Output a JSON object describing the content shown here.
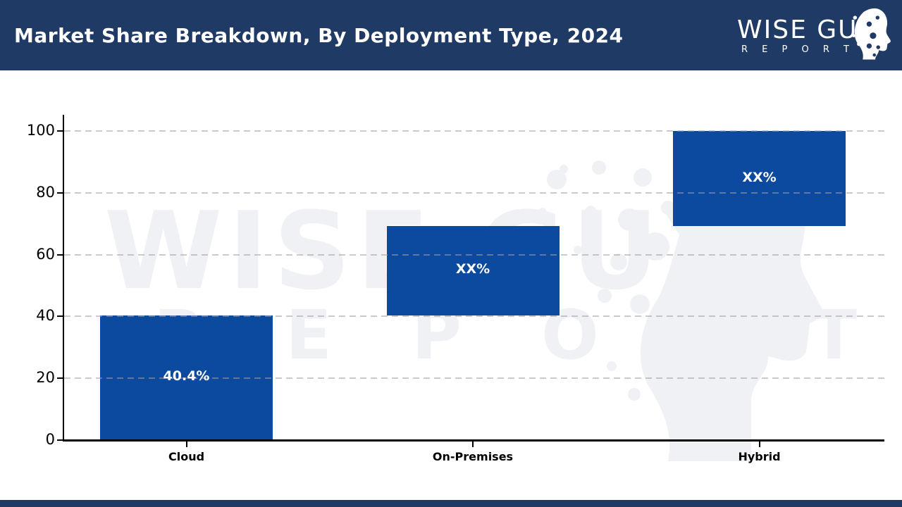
{
  "header": {
    "title": "Market Share Breakdown, By Deployment Type, 2024",
    "logo": {
      "wordmark": "WISE GUY",
      "subtext": "R E P O R T S"
    }
  },
  "watermark": {
    "wordmark": "WISE GUY",
    "subtext": "R E P O R T S"
  },
  "chart_data": {
    "type": "bar",
    "variant": "floating-waterfall",
    "title": "Market Share Breakdown, By Deployment Type, 2024",
    "unit": "%",
    "categories": [
      "Cloud",
      "On-Premises",
      "Hybrid"
    ],
    "series": [
      {
        "name": "Market share by deployment type",
        "segments": [
          {
            "category": "Cloud",
            "from": 0,
            "to": 40.4,
            "value": 40.4,
            "label": "40.4%"
          },
          {
            "category": "On-Premises",
            "from": 40.4,
            "to": 69.2,
            "value": 28.8,
            "label": "XX%"
          },
          {
            "category": "Hybrid",
            "from": 69.2,
            "to": 100,
            "value": 30.8,
            "label": "XX%"
          }
        ]
      }
    ],
    "ylim": [
      0,
      105
    ],
    "yticks": [
      0,
      20,
      40,
      60,
      80,
      100
    ],
    "grid": "dashed-horizontal",
    "legend": "none",
    "bar_color": "#0B4A9F",
    "bar_label_color": "#FFFFFF"
  },
  "colors": {
    "header_bg": "#203A66",
    "footer_bg": "#203A66",
    "axis": "#000000",
    "watermark": "#F0F1F4"
  }
}
